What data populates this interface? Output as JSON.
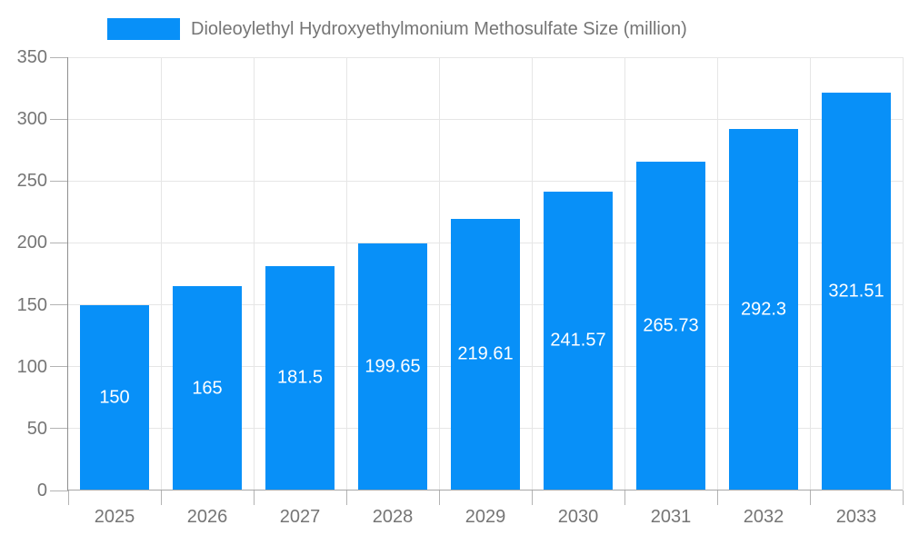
{
  "legend": {
    "label": "Dioleoylethyl Hydroxyethylmonium Methosulfate Size (million)"
  },
  "colors": {
    "bar": "#0890F8",
    "grid": "#e6e6e6",
    "axis": "#a6a6a6",
    "y_axis_line": "#8f8f8f",
    "tick": "#b3b3b3",
    "text": "#757575",
    "value_label": "#ffffff",
    "background": "#ffffff"
  },
  "chart_data": {
    "type": "bar",
    "title": "Dioleoylethyl Hydroxyethylmonium Methosulfate Size (million)",
    "categories": [
      "2025",
      "2026",
      "2027",
      "2028",
      "2029",
      "2030",
      "2031",
      "2032",
      "2033"
    ],
    "values": [
      150,
      165,
      181.5,
      199.65,
      219.61,
      241.57,
      265.73,
      292.3,
      321.51
    ],
    "value_labels": [
      "150",
      "165",
      "181.5",
      "199.65",
      "219.61",
      "241.57",
      "265.73",
      "292.3",
      "321.51"
    ],
    "xlabel": "",
    "ylabel": "",
    "ylim": [
      0,
      350
    ],
    "ytick_step": 50,
    "ytick_labels": [
      "0",
      "50",
      "100",
      "150",
      "200",
      "250",
      "300",
      "350"
    ],
    "grid": true,
    "legend_position": "top",
    "series_name": "Dioleoylethyl Hydroxyethylmonium Methosulfate Size (million)"
  }
}
